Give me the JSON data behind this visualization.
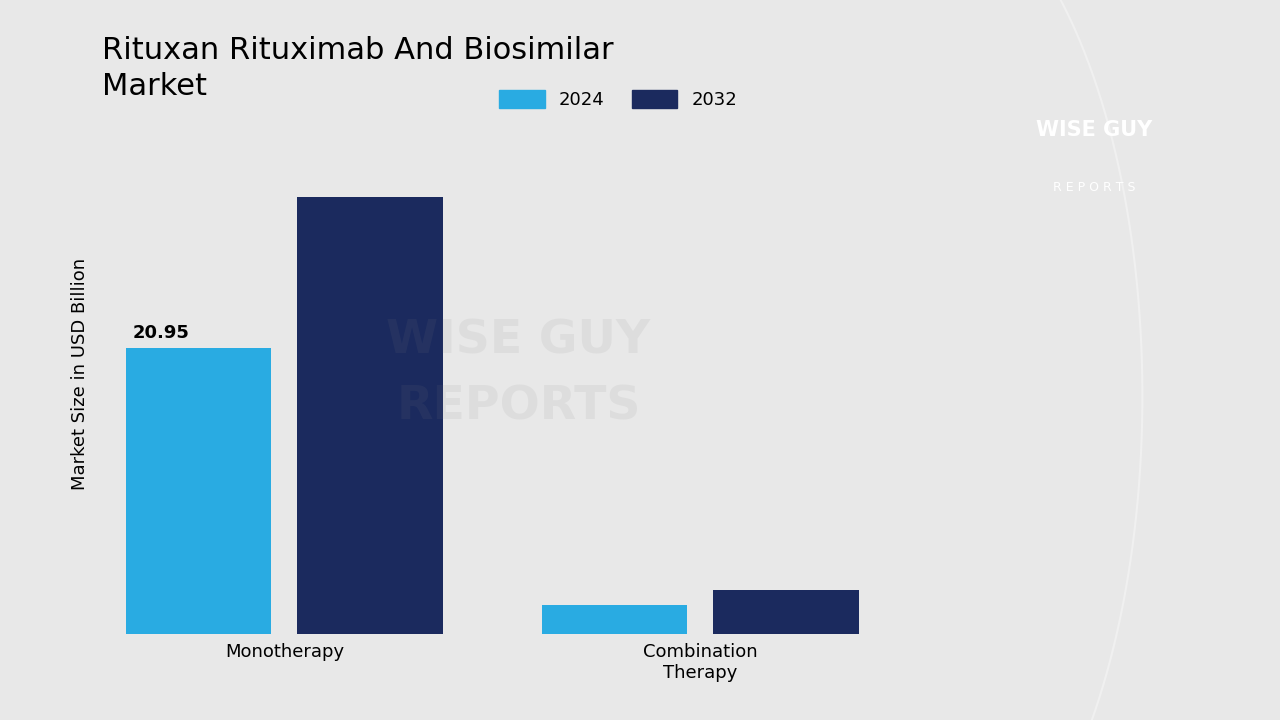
{
  "title": "Rituxan Rituximab And Biosimilar\nMarket",
  "ylabel": "Market Size in USD Billion",
  "categories": [
    "Monotherapy",
    "Combination\nTherapy"
  ],
  "series": [
    {
      "label": "2024",
      "color": "#29ABE2",
      "values": [
        20.95,
        2.1
      ]
    },
    {
      "label": "2032",
      "color": "#1B2A5E",
      "values": [
        32.0,
        3.2
      ]
    }
  ],
  "bar_width": 0.28,
  "bar_gap": 0.05,
  "group_positions": [
    0.35,
    1.15
  ],
  "annotate_value": "20.95",
  "bg_color": "#E8E8E8",
  "plot_bg_color": "#E8E8E8",
  "right_panel_color": "#1B2A5E",
  "title_fontsize": 22,
  "ylabel_fontsize": 13,
  "tick_fontsize": 13,
  "legend_fontsize": 13,
  "annotation_fontsize": 13,
  "ylim": [
    0,
    38
  ]
}
